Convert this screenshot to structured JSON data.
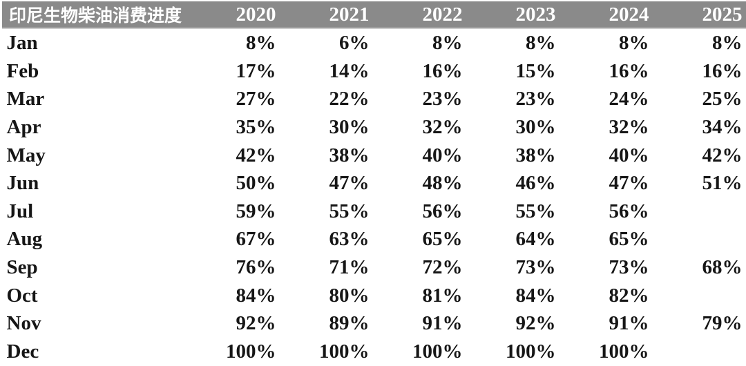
{
  "table": {
    "title": "印尼生物柴油消费进度",
    "columns": [
      "2020",
      "2021",
      "2022",
      "2023",
      "2024",
      "2025"
    ],
    "rows": [
      {
        "month": "Jan",
        "values": [
          "8%",
          "6%",
          "8%",
          "8%",
          "8%",
          "8%"
        ]
      },
      {
        "month": "Feb",
        "values": [
          "17%",
          "14%",
          "16%",
          "15%",
          "16%",
          "16%"
        ]
      },
      {
        "month": "Mar",
        "values": [
          "27%",
          "22%",
          "23%",
          "23%",
          "24%",
          "25%"
        ]
      },
      {
        "month": "Apr",
        "values": [
          "35%",
          "30%",
          "32%",
          "30%",
          "32%",
          "34%"
        ]
      },
      {
        "month": "May",
        "values": [
          "42%",
          "38%",
          "40%",
          "38%",
          "40%",
          "42%"
        ]
      },
      {
        "month": "Jun",
        "values": [
          "50%",
          "47%",
          "48%",
          "46%",
          "47%",
          "51%"
        ]
      },
      {
        "month": "Jul",
        "values": [
          "59%",
          "55%",
          "56%",
          "55%",
          "56%",
          ""
        ]
      },
      {
        "month": "Aug",
        "values": [
          "67%",
          "63%",
          "65%",
          "64%",
          "65%",
          ""
        ]
      },
      {
        "month": "Sep",
        "values": [
          "76%",
          "71%",
          "72%",
          "73%",
          "73%",
          "68%"
        ]
      },
      {
        "month": "Oct",
        "values": [
          "84%",
          "80%",
          "81%",
          "84%",
          "82%",
          ""
        ]
      },
      {
        "month": "Nov",
        "values": [
          "92%",
          "89%",
          "91%",
          "92%",
          "91%",
          "79%"
        ]
      },
      {
        "month": "Dec",
        "values": [
          "100%",
          "100%",
          "100%",
          "100%",
          "100%",
          ""
        ]
      }
    ]
  },
  "colors": {
    "header_background": "#8a8a8a",
    "header_text": "#ffffff",
    "body_text": "#161616",
    "page_background": "#ffffff"
  },
  "chart_data": {
    "type": "table",
    "title": "印尼生物柴油消费进度",
    "unit": "percent",
    "row_labels": [
      "Jan",
      "Feb",
      "Mar",
      "Apr",
      "May",
      "Jun",
      "Jul",
      "Aug",
      "Sep",
      "Oct",
      "Nov",
      "Dec"
    ],
    "series": [
      {
        "name": "2020",
        "values": [
          8,
          17,
          27,
          35,
          42,
          50,
          59,
          67,
          76,
          84,
          92,
          100
        ]
      },
      {
        "name": "2021",
        "values": [
          6,
          14,
          22,
          30,
          38,
          47,
          55,
          63,
          71,
          80,
          89,
          100
        ]
      },
      {
        "name": "2022",
        "values": [
          8,
          16,
          23,
          32,
          40,
          48,
          56,
          65,
          72,
          81,
          91,
          100
        ]
      },
      {
        "name": "2023",
        "values": [
          8,
          15,
          23,
          30,
          38,
          46,
          55,
          64,
          73,
          84,
          92,
          100
        ]
      },
      {
        "name": "2024",
        "values": [
          8,
          16,
          24,
          32,
          40,
          47,
          56,
          65,
          73,
          82,
          91,
          100
        ]
      },
      {
        "name": "2025",
        "values": [
          8,
          16,
          25,
          34,
          42,
          51,
          null,
          null,
          68,
          null,
          79,
          null
        ]
      }
    ]
  }
}
